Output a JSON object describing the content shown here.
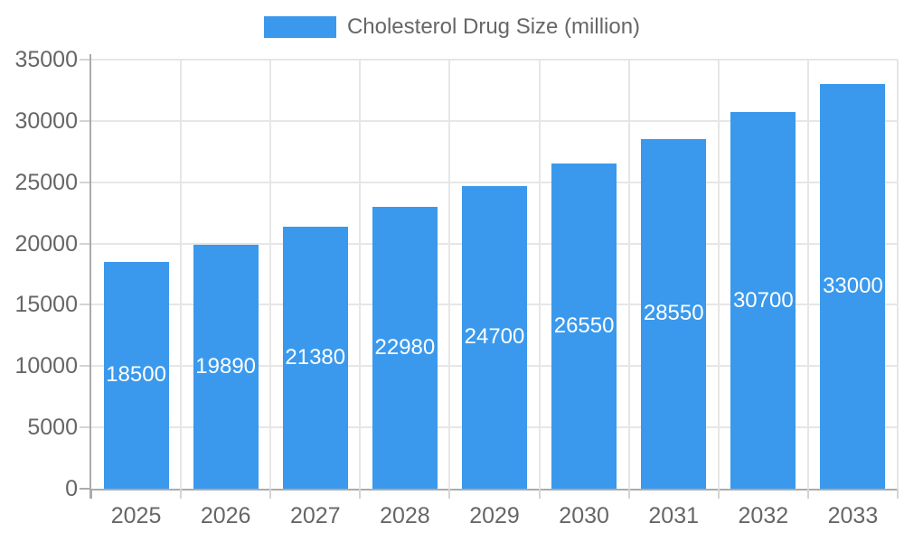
{
  "legend": {
    "label": "Cholesterol Drug Size (million)"
  },
  "colors": {
    "bar": "#3a99ec",
    "axis_text": "#666666",
    "grid_line": "#e6e6e6",
    "axis_line": "#ababab",
    "tick_mark": "#d4d4d4",
    "value_label": "#ffffff",
    "background": "#ffffff"
  },
  "chart_data": {
    "type": "bar",
    "title": "Cholesterol Drug Size (million)",
    "series_name": "Cholesterol Drug Size (million)",
    "categories": [
      "2025",
      "2026",
      "2027",
      "2028",
      "2029",
      "2030",
      "2031",
      "2032",
      "2033"
    ],
    "values": [
      18500,
      19890,
      21380,
      22980,
      24700,
      26550,
      28550,
      30700,
      33000
    ],
    "xlabel": "",
    "ylabel": "",
    "ylim": [
      0,
      35000
    ],
    "y_ticks": [
      0,
      5000,
      10000,
      15000,
      20000,
      25000,
      30000,
      35000
    ],
    "grid": true,
    "legend_position": "top-center",
    "value_label_position": "inside-center"
  }
}
